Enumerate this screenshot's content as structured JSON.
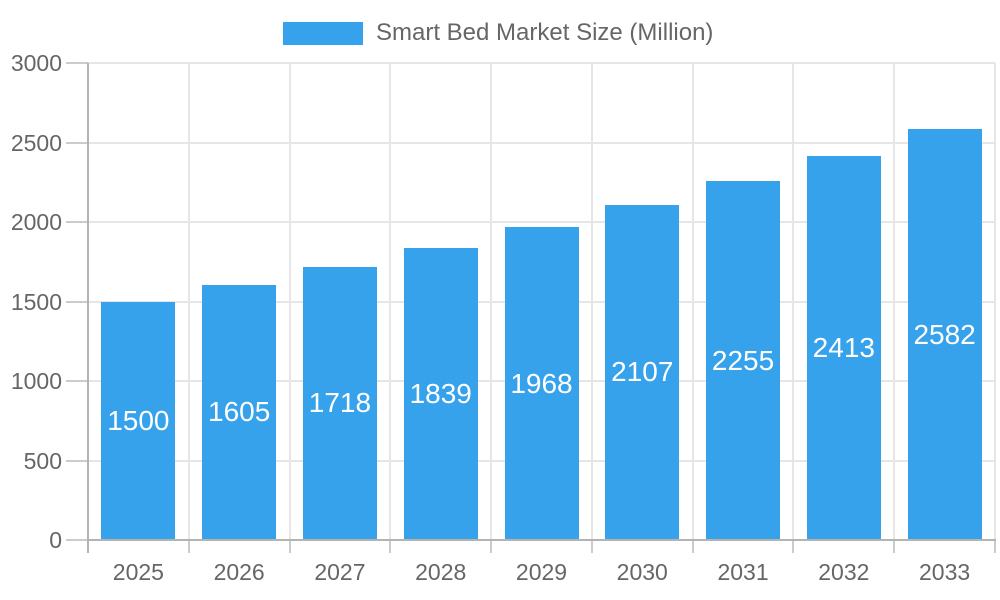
{
  "chart_data": {
    "type": "bar",
    "title": "Smart Bed Market Size (Million)",
    "legend": {
      "label": "Smart Bed Market Size (Million)",
      "position": "top-center"
    },
    "categories": [
      "2025",
      "2026",
      "2027",
      "2028",
      "2029",
      "2030",
      "2031",
      "2032",
      "2033"
    ],
    "values": [
      1500,
      1605,
      1718,
      1839,
      1968,
      2107,
      2255,
      2413,
      2582
    ],
    "series_name": "Smart Bed Market Size (Million)",
    "xlabel": "",
    "ylabel": "",
    "ylim": [
      0,
      3000
    ],
    "ytick_step": 500,
    "ytick_labels": [
      "0",
      "500",
      "1000",
      "1500",
      "2000",
      "2500",
      "3000"
    ],
    "grid": true,
    "value_label_position": "inside-center",
    "colors": {
      "bar": "#36A2EB",
      "value_label": "#FFFFFF",
      "axis_text": "#666666",
      "legend_text": "#666666",
      "grid_line": "#E6E6E6",
      "axis_line": "#B3B3B3",
      "tick_mark": "#CCCCCC",
      "background": "#FFFFFF"
    }
  }
}
